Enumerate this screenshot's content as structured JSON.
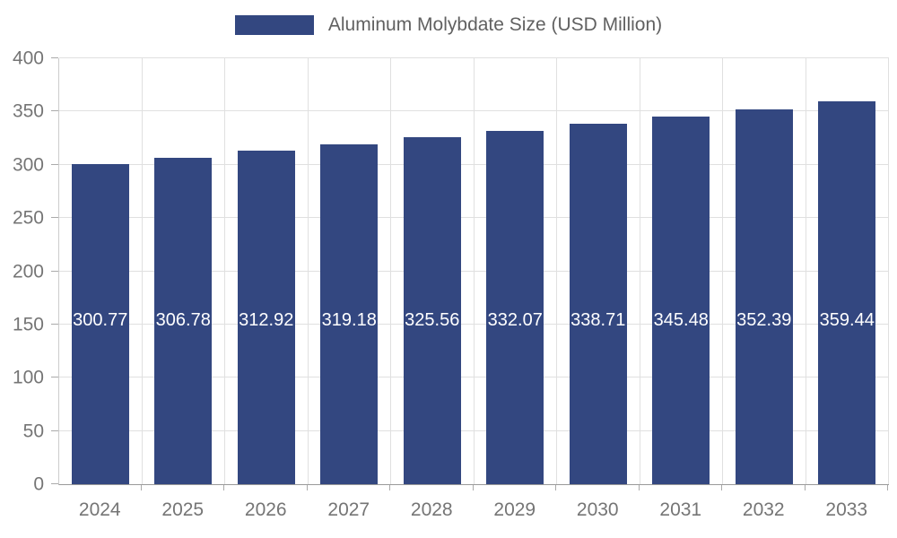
{
  "legend": {
    "label": "Aluminum Molybdate Size (USD Million)"
  },
  "chart_data": {
    "type": "bar",
    "title": "Aluminum Molybdate Size (USD Million)",
    "categories": [
      "2024",
      "2025",
      "2026",
      "2027",
      "2028",
      "2029",
      "2030",
      "2031",
      "2032",
      "2033"
    ],
    "values": [
      300.77,
      306.78,
      312.92,
      319.18,
      325.56,
      332.07,
      338.71,
      345.48,
      352.39,
      359.44
    ],
    "labels": [
      "300.77",
      "306.78",
      "312.92",
      "319.18",
      "325.56",
      "332.07",
      "338.71",
      "345.48",
      "352.39",
      "359.44"
    ],
    "xlabel": "",
    "ylabel": "",
    "ylim": [
      0,
      400
    ],
    "yticks": [
      0,
      50,
      100,
      150,
      200,
      250,
      300,
      350,
      400
    ],
    "grid": true,
    "legend_position": "top",
    "bar_color": "#334780",
    "label_color": "#ffffff",
    "axis_text_color": "#757575"
  }
}
